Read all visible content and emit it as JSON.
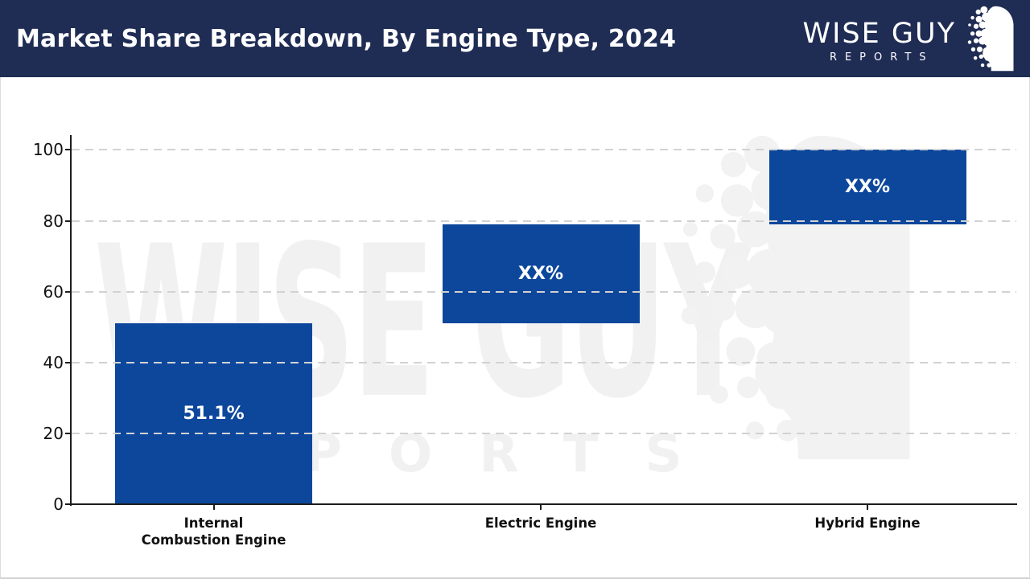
{
  "header": {
    "title": "Market Share Breakdown, By Engine Type, 2024",
    "bg_color": "#1f2c54",
    "logo": {
      "line1": "WISE GUY",
      "line2": "REPORTS"
    }
  },
  "watermark": {
    "line1": "WISE GUY",
    "line2": "REPORTS"
  },
  "chart_data": {
    "type": "bar",
    "subtype": "waterfall",
    "title": "Market Share Breakdown, By Engine Type, 2024",
    "categories": [
      "Internal Combustion Engine",
      "Electric Engine",
      "Hybrid Engine"
    ],
    "category_display_lines": [
      [
        "Internal",
        "Combustion Engine"
      ],
      [
        "Electric Engine"
      ],
      [
        "Hybrid Engine"
      ]
    ],
    "segments": [
      {
        "category": "Internal Combustion Engine",
        "start": 0,
        "end": 51.1,
        "label": "51.1%"
      },
      {
        "category": "Electric Engine",
        "start": 51.1,
        "end": 79,
        "label": "XX%"
      },
      {
        "category": "Hybrid Engine",
        "start": 79,
        "end": 100,
        "label": "XX%"
      }
    ],
    "xlabel": "",
    "ylabel": "",
    "ylim": [
      0,
      100
    ],
    "yticks": [
      0,
      20,
      40,
      60,
      80,
      100
    ],
    "bar_color": "#0d479c",
    "value_label_color": "#ffffff",
    "grid": {
      "axis": "y",
      "style": "dashed",
      "color": "#d2d2d2",
      "above_bars": true
    },
    "legend": "none"
  }
}
